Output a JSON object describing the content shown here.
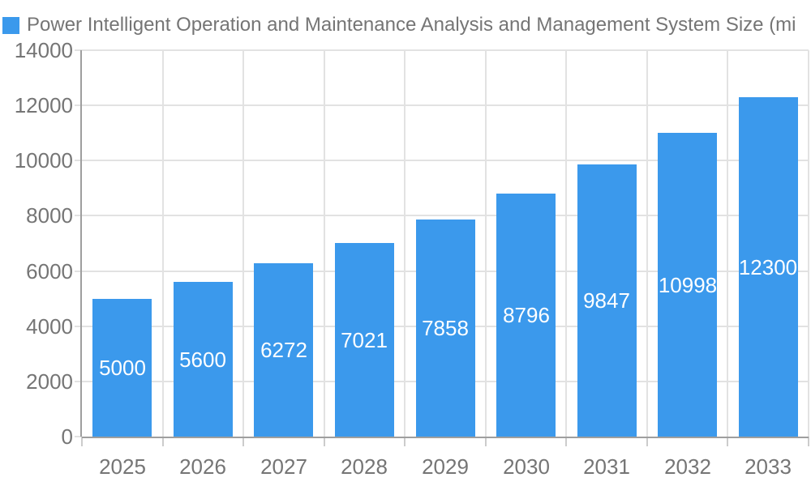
{
  "chart_data": {
    "type": "bar",
    "title": "Power Intelligent Operation and Maintenance Analysis and Management System Size (mi",
    "categories": [
      "2025",
      "2026",
      "2027",
      "2028",
      "2029",
      "2030",
      "2031",
      "2032",
      "2033"
    ],
    "values": [
      5000,
      5600,
      6272,
      7021,
      7858,
      8796,
      9847,
      10998,
      12300
    ],
    "value_labels": [
      "5000",
      "5600",
      "6272",
      "7021",
      "7858",
      "8796",
      "9847",
      "10998",
      "12300"
    ],
    "ylim": [
      0,
      14000
    ],
    "yticks": [
      0,
      2000,
      4000,
      6000,
      8000,
      10000,
      12000,
      14000
    ],
    "ytick_labels": [
      "0",
      "2000",
      "4000",
      "6000",
      "8000",
      "10000",
      "12000",
      "14000"
    ],
    "xlabel": "",
    "ylabel": "",
    "grid": true,
    "legend_position": "top-left"
  },
  "colors": {
    "bar": "#3b99ec",
    "bar_value_label": "#ffffff",
    "text": "#757575",
    "gridline": "#e2e2e2",
    "axis_line": "#9e9e9e",
    "tick": "#cccccc",
    "background": "#ffffff"
  }
}
